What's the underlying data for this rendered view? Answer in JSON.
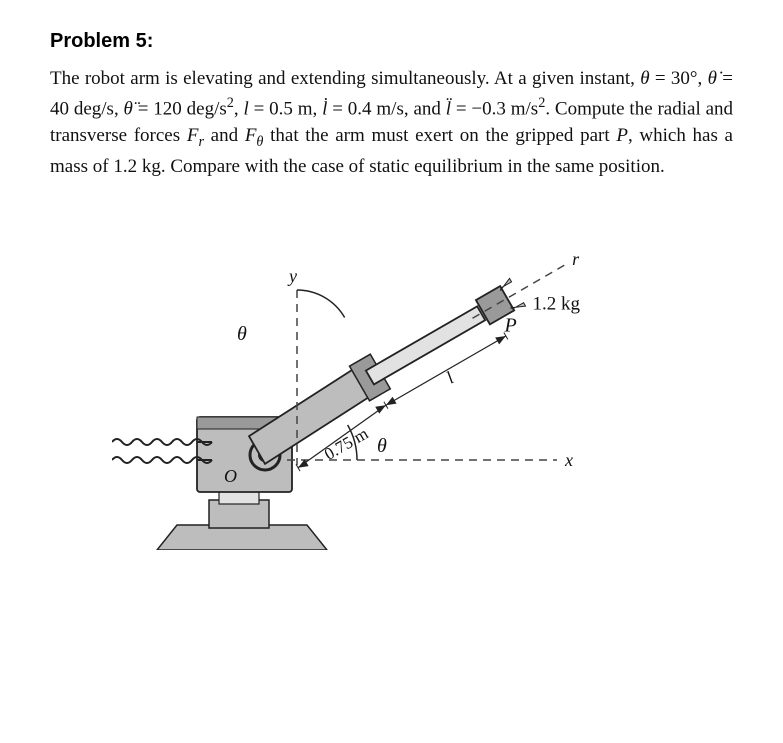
{
  "heading": "Problem 5:",
  "para_parts": {
    "t1": "The robot arm is elevating and extending simultaneously. At a given instant, ",
    "theta": "θ",
    "eq1": " = 30°, ",
    "thetadot": "θ̇",
    "eq2": " = 40 deg/s, ",
    "thetaddot": "θ̈",
    "eq3": " = 120 deg/s",
    "sq": "2",
    "comma1": ", ",
    "l": "l",
    "eq4": " = 0.5 m, ",
    "ldot": "l̇",
    "eq5": " = 0.4 m/s, and ",
    "lddot": "l̈",
    "eq6": " = −0.3 m/s",
    "comma2": ". Compute the radial and transverse forces ",
    "Fr": "F",
    "rsub": "r",
    "and": " and ",
    "Ft": "F",
    "tsub": "θ",
    "t2": " that the arm must exert on the gripped part ",
    "P": "P",
    "t3": ", which has a mass of 1.2 kg. Compare with the case of static equilibrium in the same position."
  },
  "figure": {
    "labels": {
      "y": "y",
      "x": "x",
      "r": "r",
      "l": "l",
      "theta_upper": "θ",
      "theta_lower": "θ",
      "origin": "O",
      "dim075": "0.75 m",
      "mass": "1.2 kg",
      "P": "P"
    },
    "colors": {
      "stroke": "#222222",
      "fill_light": "#e2e2e2",
      "fill_mid": "#bdbdbd",
      "fill_dark": "#9a9a9a",
      "bg": "#ffffff",
      "dash": "#444444",
      "text": "#111111"
    },
    "angle_deg": 30,
    "base_len": 0.75,
    "ext_len": 0.5
  }
}
